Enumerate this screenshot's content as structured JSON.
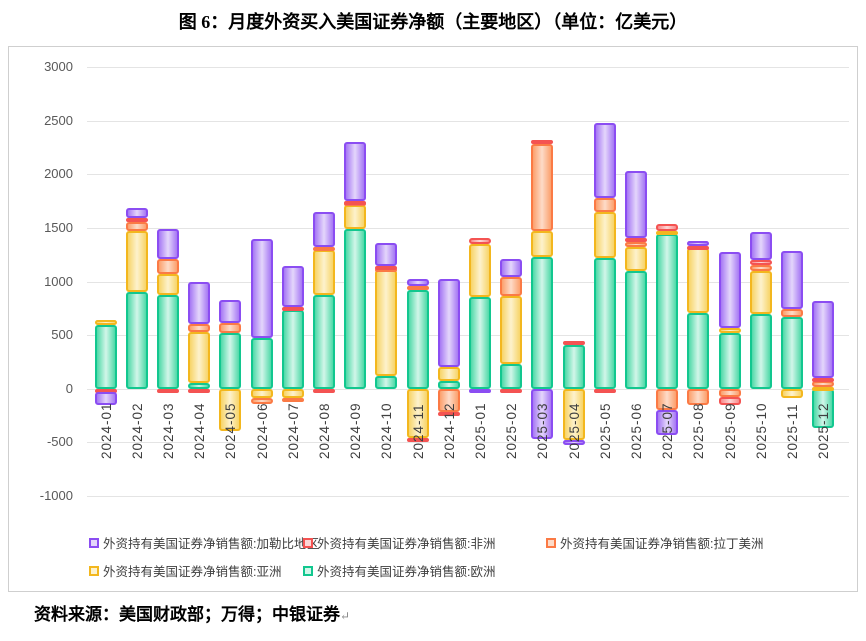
{
  "title": "图 6：月度外资买入美国证券净额（主要地区）（单位：亿美元）",
  "source": "资料来源：美国财政部；万得；中银证券",
  "source_mark": "↵",
  "chart_data": {
    "type": "bar",
    "stacked": true,
    "title": "图 6：月度外资买入美国证券净额（主要地区）（单位：亿美元）",
    "unit": "亿美元",
    "grid": true,
    "legend_position": "bottom",
    "ylim": [
      -1000,
      3000
    ],
    "yticks": [
      3000,
      2500,
      2000,
      1500,
      1000,
      500,
      0,
      -500,
      -1000
    ],
    "categories": [
      "2024-01",
      "2024-02",
      "2024-03",
      "2024-04",
      "2024-05",
      "2024-06",
      "2024-07",
      "2024-08",
      "2024-09",
      "2024-10",
      "2024-11",
      "2024-12",
      "2025-01",
      "2025-02",
      "2025-03",
      "2025-04",
      "2025-05",
      "2025-06",
      "2025-07",
      "2025-08",
      "2025-09",
      "2025-10",
      "2025-11",
      "2025-12"
    ],
    "series": [
      {
        "name": "外资持有美国证券净销售额:欧洲",
        "border": "#12c78f",
        "fill_edge": "#4fd9a8",
        "fill_center": "#d2f6e9",
        "values": [
          590,
          900,
          870,
          50,
          520,
          470,
          730,
          870,
          1490,
          120,
          920,
          75,
          860,
          235,
          1230,
          405,
          1220,
          1100,
          1445,
          710,
          520,
          700,
          670,
          -370
        ]
      },
      {
        "name": "外资持有美国证券净销售额:亚洲",
        "border": "#f3b71e",
        "fill_edge": "#f7d468",
        "fill_center": "#fdf2cd",
        "values": [
          55,
          575,
          200,
          480,
          -390,
          -85,
          -90,
          420,
          220,
          985,
          -460,
          125,
          485,
          630,
          240,
          -480,
          430,
          225,
          30,
          600,
          45,
          400,
          -85,
          20
        ]
      },
      {
        "name": "外资持有美国证券净销售额:拉丁美洲",
        "border": "#fb7a45",
        "fill_edge": "#fca06c",
        "fill_center": "#fddbc8",
        "values": [
          0,
          80,
          140,
          75,
          95,
          -60,
          -30,
          30,
          30,
          20,
          35,
          -215,
          0,
          175,
          810,
          0,
          130,
          45,
          -200,
          -150,
          -75,
          55,
          70,
          50
        ]
      },
      {
        "name": "外资持有美国证券净销售额:非洲",
        "border": "#f45352",
        "fill_edge": "#f88a8a",
        "fill_center": "#fdd6d6",
        "values": [
          -30,
          40,
          -35,
          -25,
          0,
          0,
          30,
          -20,
          15,
          15,
          -40,
          -35,
          65,
          -35,
          40,
          40,
          -35,
          40,
          60,
          20,
          -75,
          45,
          0,
          30
        ]
      },
      {
        "name": "外资持有美国证券净销售额:加勒比地区",
        "border": "#8b4df2",
        "fill_edge": "#a678f4",
        "fill_center": "#e4d6fb",
        "values": [
          -120,
          90,
          280,
          395,
          215,
          930,
          385,
          330,
          545,
          215,
          65,
          825,
          -30,
          170,
          -465,
          -45,
          700,
          620,
          -230,
          45,
          710,
          260,
          545,
          715
        ]
      }
    ],
    "legend_rows": [
      [
        4,
        3,
        2
      ],
      [
        1,
        0
      ]
    ]
  }
}
